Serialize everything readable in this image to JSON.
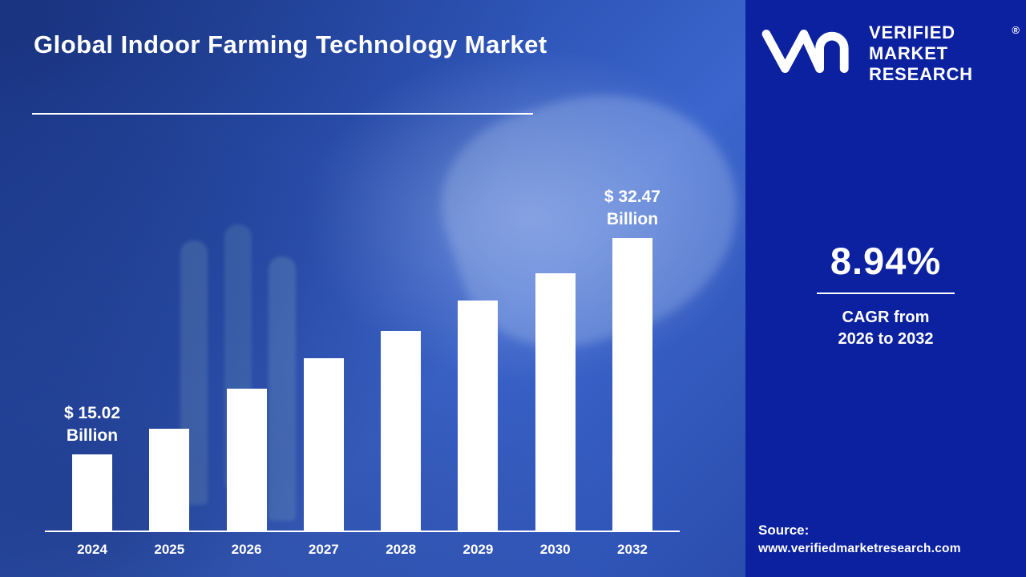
{
  "header": {
    "title": "Global Indoor Farming Technology Market"
  },
  "sidebar": {
    "logo_lines": {
      "0": "VERIFIED",
      "1": "MARKET",
      "2": "RESEARCH"
    },
    "registered_mark": "®",
    "cagr_value": "8.94%",
    "cagr_label_line1": "CAGR from",
    "cagr_label_line2": "2026 to 2032",
    "source_label": "Source:",
    "source_url": "www.verifiedmarketresearch.com"
  },
  "icons": {
    "logo_mark": "vmr-monogram-icon"
  },
  "colors": {
    "left_background": "#2e55b8",
    "sidebar_background": "#0c21a0",
    "bar_color": "#ffffff",
    "text_color": "#ffffff"
  },
  "chart_data": {
    "type": "bar",
    "title": "Global Indoor Farming Technology Market",
    "unit": "USD Billion",
    "categories": [
      "2024",
      "2025",
      "2026",
      "2027",
      "2028",
      "2029",
      "2030",
      "2032"
    ],
    "values": [
      15.02,
      17.1,
      20.3,
      22.8,
      25.0,
      27.4,
      29.6,
      32.47
    ],
    "first_value_label": "$ 15.02 Billion",
    "last_value_label": "$ 32.47 Billion",
    "annotations": [
      {
        "index": 0,
        "line1": "$ 15.02",
        "line2": "Billion"
      },
      {
        "index": 7,
        "line1": "$ 32.47",
        "line2": "Billion"
      }
    ],
    "xlabel": "",
    "ylabel": "",
    "ylim": [
      0,
      35
    ],
    "grid": false,
    "legend": false,
    "bar_color": "#ffffff"
  }
}
